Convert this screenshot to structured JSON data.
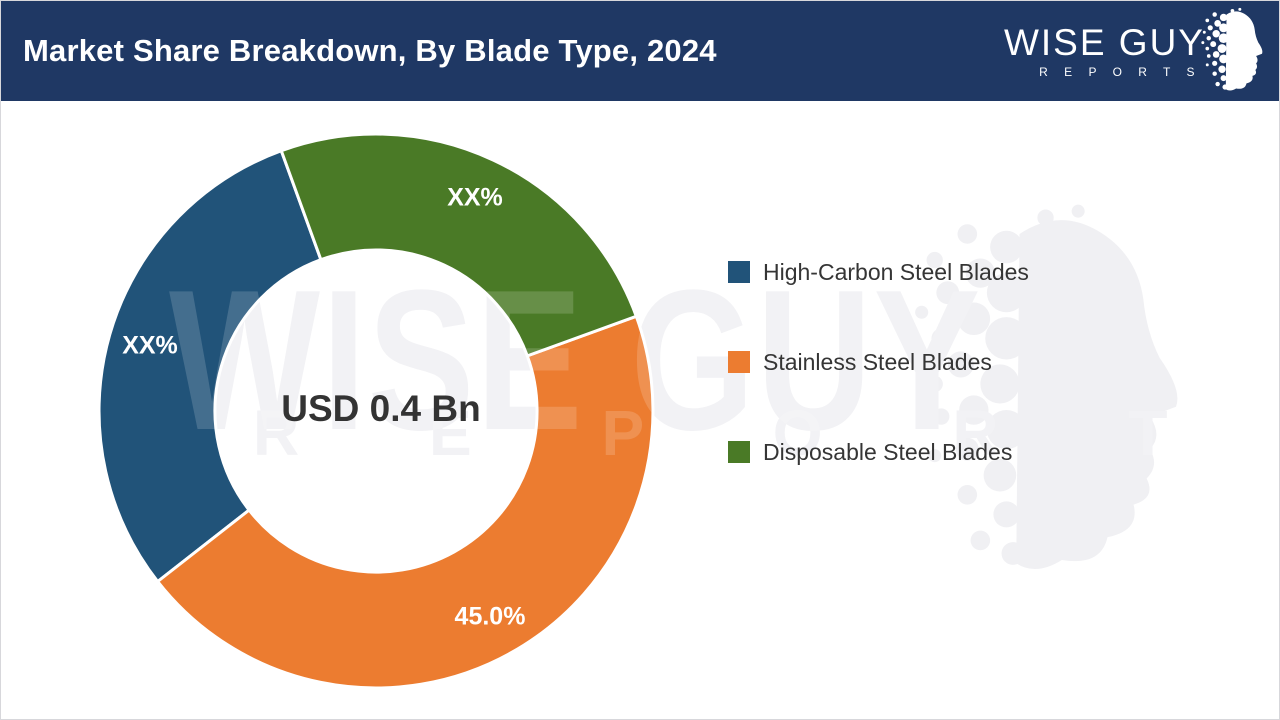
{
  "header": {
    "title": "Market Share Breakdown, By Blade Type, 2024",
    "logo": {
      "brand": "WISE GUY",
      "sub": "R E P O R T S"
    }
  },
  "watermark": {
    "brand": "WISE GUY",
    "sub": "R E P O R T S"
  },
  "chart_data": {
    "type": "pie",
    "subtype": "donut",
    "title": "Market Share Breakdown, By Blade Type, 2024",
    "center_label": "USD 0.4 Bn",
    "unit": "percent of market share",
    "start_angle_deg": 110,
    "counterclockwise": true,
    "inner_radius_ratio": 0.58,
    "legend_position": "right",
    "segments": [
      {
        "label": "High-Carbon Steel Blades",
        "display_value": "XX%",
        "share_pct": 30,
        "value_hidden": true,
        "color": "#215379"
      },
      {
        "label": "Stainless Steel Blades",
        "display_value": "45.0%",
        "share_pct": 45,
        "value_hidden": false,
        "color": "#EC7C30"
      },
      {
        "label": "Disposable Steel Blades",
        "display_value": "XX%",
        "share_pct": 25,
        "value_hidden": true,
        "color": "#4A7A26"
      }
    ]
  },
  "colors": {
    "header_bg": "#1F3864",
    "segment_gap": "#FFFFFF",
    "center_text": "#333333",
    "legend_text": "#353535",
    "watermark": "#F0F0F3"
  }
}
